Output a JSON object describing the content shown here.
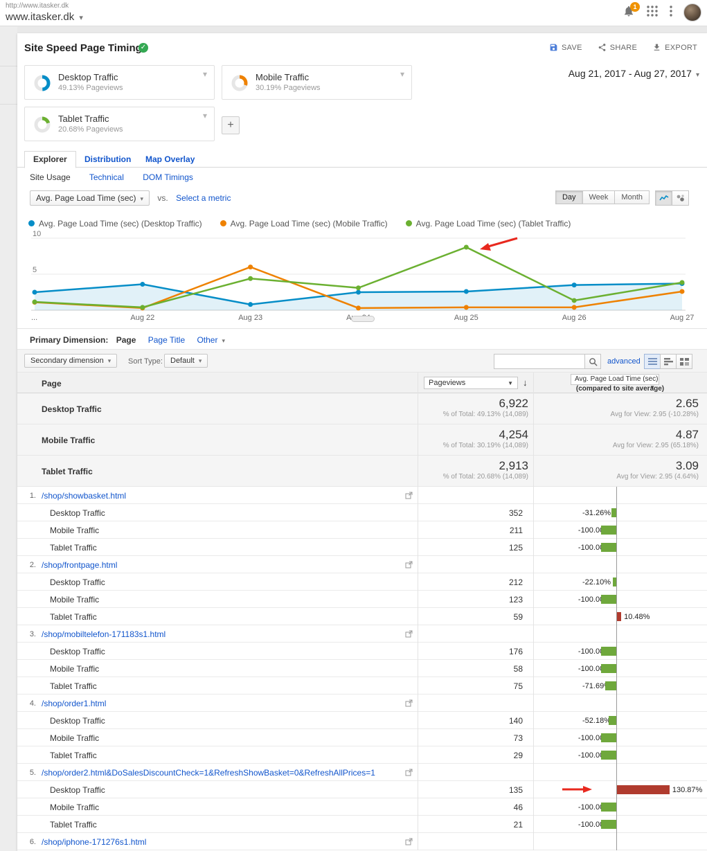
{
  "topbar": {
    "url": "http://www.itasker.dk",
    "property": "www.itasker.dk",
    "notification_badge": "1"
  },
  "header": {
    "title": "Site Speed Page Timings",
    "save_label": "SAVE",
    "share_label": "SHARE",
    "export_label": "EXPORT"
  },
  "segments": {
    "items": [
      {
        "name": "Desktop Traffic",
        "detail": "49.13% Pageviews",
        "share_pct": 49.13,
        "color": "#058dc7"
      },
      {
        "name": "Mobile Traffic",
        "detail": "30.19% Pageviews",
        "share_pct": 30.19,
        "color": "#ee8100"
      },
      {
        "name": "Tablet Traffic",
        "detail": "20.68% Pageviews",
        "share_pct": 20.68,
        "color": "#6bb031"
      }
    ],
    "add_label": "+"
  },
  "date_range": "Aug 21, 2017 - Aug 27, 2017",
  "tabs": [
    "Explorer",
    "Distribution",
    "Map Overlay"
  ],
  "subtabs": [
    "Site Usage",
    "Technical",
    "DOM Timings"
  ],
  "metric_bar": {
    "metric_dropdown": "Avg. Page Load Time (sec)",
    "vs_label": "vs.",
    "select_metric": "Select a metric",
    "granularity": [
      "Day",
      "Week",
      "Month"
    ],
    "active_granularity": "Day"
  },
  "chart_data": {
    "type": "line",
    "x_labels": [
      "...",
      "Aug 22",
      "Aug 23",
      "Aug 24",
      "Aug 25",
      "Aug 26",
      "Aug 27"
    ],
    "y_ticks": [
      5,
      10
    ],
    "ylim": [
      0,
      10
    ],
    "series": [
      {
        "name": "Avg. Page Load Time (sec) (Desktop Traffic)",
        "color": "#058dc7",
        "area_fill": true,
        "values": [
          2.5,
          3.6,
          0.8,
          2.5,
          2.6,
          3.5,
          3.7
        ]
      },
      {
        "name": "Avg. Page Load Time (sec) (Mobile Traffic)",
        "color": "#ee8100",
        "values": [
          1.1,
          0.3,
          6.0,
          0.3,
          0.4,
          0.4,
          2.6
        ]
      },
      {
        "name": "Avg. Page Load Time (sec) (Tablet Traffic)",
        "color": "#6bb031",
        "values": [
          1.15,
          0.4,
          4.4,
          3.1,
          8.75,
          1.35,
          3.85
        ]
      }
    ],
    "annotations": [
      "red arrow pointing at Tablet Traffic peak on Aug 25",
      "red arrow pointing at Desktop Traffic 130.87% bar in row 5"
    ]
  },
  "dimension_bar": {
    "label": "Primary Dimension:",
    "active": "Page",
    "links": [
      "Page Title",
      "Other"
    ]
  },
  "controls": {
    "secondary_dimension": "Secondary dimension",
    "sort_type_label": "Sort Type:",
    "sort_type_value": "Default",
    "search_value": "",
    "advanced_label": "advanced"
  },
  "table": {
    "columns": {
      "page": "Page",
      "pageviews": "Pageviews",
      "metric": "Avg. Page Load Time (sec)",
      "metric_note": "(compared to site average)"
    },
    "bar_colors": {
      "positive": "#b03b2e",
      "negative": "#6fa83c"
    },
    "totals": [
      {
        "segment": "Desktop Traffic",
        "pageviews": "6,922",
        "pageviews_sub": "% of Total: 49.13% (14,089)",
        "value": "2.65",
        "value_sub": "Avg for View: 2.95 (-10.28%)"
      },
      {
        "segment": "Mobile Traffic",
        "pageviews": "4,254",
        "pageviews_sub": "% of Total: 30.19% (14,089)",
        "value": "4.87",
        "value_sub": "Avg for View: 2.95 (65.18%)"
      },
      {
        "segment": "Tablet Traffic",
        "pageviews": "2,913",
        "pageviews_sub": "% of Total: 20.68% (14,089)",
        "value": "3.09",
        "value_sub": "Avg for View: 2.95 (4.64%)"
      }
    ],
    "rows": [
      {
        "index": "1.",
        "page": "/shop/showbasket.html",
        "segments": [
          {
            "name": "Desktop Traffic",
            "pageviews": "352",
            "delta_label": "-31.26%",
            "delta_pct": -31.26
          },
          {
            "name": "Mobile Traffic",
            "pageviews": "211",
            "delta_label": "-100.00%",
            "delta_pct": -100
          },
          {
            "name": "Tablet Traffic",
            "pageviews": "125",
            "delta_label": "-100.00%",
            "delta_pct": -100
          }
        ]
      },
      {
        "index": "2.",
        "page": "/shop/frontpage.html",
        "segments": [
          {
            "name": "Desktop Traffic",
            "pageviews": "212",
            "delta_label": "-22.10%",
            "delta_pct": -22.1
          },
          {
            "name": "Mobile Traffic",
            "pageviews": "123",
            "delta_label": "-100.00%",
            "delta_pct": -100
          },
          {
            "name": "Tablet Traffic",
            "pageviews": "59",
            "delta_label": "10.48%",
            "delta_pct": 10.48
          }
        ]
      },
      {
        "index": "3.",
        "page": "/shop/mobiltelefon-171183s1.html",
        "segments": [
          {
            "name": "Desktop Traffic",
            "pageviews": "176",
            "delta_label": "-100.00%",
            "delta_pct": -100
          },
          {
            "name": "Mobile Traffic",
            "pageviews": "58",
            "delta_label": "-100.00%",
            "delta_pct": -100
          },
          {
            "name": "Tablet Traffic",
            "pageviews": "75",
            "delta_label": "-71.69%",
            "delta_pct": -71.69
          }
        ]
      },
      {
        "index": "4.",
        "page": "/shop/order1.html",
        "segments": [
          {
            "name": "Desktop Traffic",
            "pageviews": "140",
            "delta_label": "-52.18%",
            "delta_pct": -52.18
          },
          {
            "name": "Mobile Traffic",
            "pageviews": "73",
            "delta_label": "-100.00%",
            "delta_pct": -100
          },
          {
            "name": "Tablet Traffic",
            "pageviews": "29",
            "delta_label": "-100.00%",
            "delta_pct": -100
          }
        ]
      },
      {
        "index": "5.",
        "page": "/shop/order2.html&DoSalesDiscountCheck=1&RefreshShowBasket=0&RefreshAllPrices=1",
        "segments": [
          {
            "name": "Desktop Traffic",
            "pageviews": "135",
            "delta_label": "130.87%",
            "delta_pct": 130.87,
            "annotated": true
          },
          {
            "name": "Mobile Traffic",
            "pageviews": "46",
            "delta_label": "-100.00%",
            "delta_pct": -100
          },
          {
            "name": "Tablet Traffic",
            "pageviews": "21",
            "delta_label": "-100.00%",
            "delta_pct": -100
          }
        ]
      },
      {
        "index": "6.",
        "page": "/shop/iphone-171276s1.html",
        "segments": []
      }
    ]
  }
}
